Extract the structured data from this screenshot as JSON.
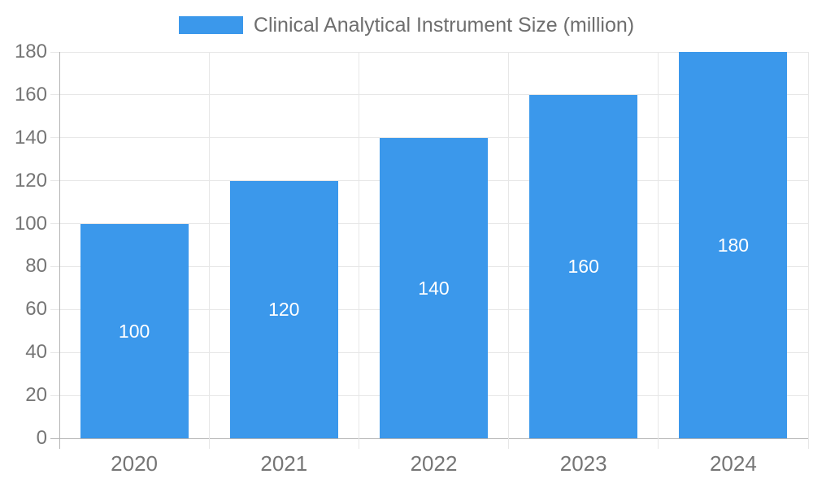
{
  "legend": {
    "label": "Clinical Analytical Instrument Size (million)"
  },
  "chart_data": {
    "type": "bar",
    "title": "Clinical Analytical Instrument Size (million)",
    "series_name": "Clinical Analytical Instrument Size (million)",
    "categories": [
      "2020",
      "2021",
      "2022",
      "2023",
      "2024"
    ],
    "values": [
      100,
      120,
      140,
      160,
      180
    ],
    "xlabel": "",
    "ylabel": "",
    "ylim": [
      0,
      180
    ],
    "yticks": [
      0,
      20,
      40,
      60,
      80,
      100,
      120,
      140,
      160,
      180
    ],
    "grid": true,
    "legend_position": "top",
    "value_labels": "inside-center"
  },
  "colors": {
    "bar": "#3B98EB",
    "grid_light": "#E7E7E7",
    "grid_zero": "#B4B4B4",
    "tick_text": "#757575",
    "legend_text": "#6E6E6E",
    "value_text": "#FFFFFF"
  }
}
